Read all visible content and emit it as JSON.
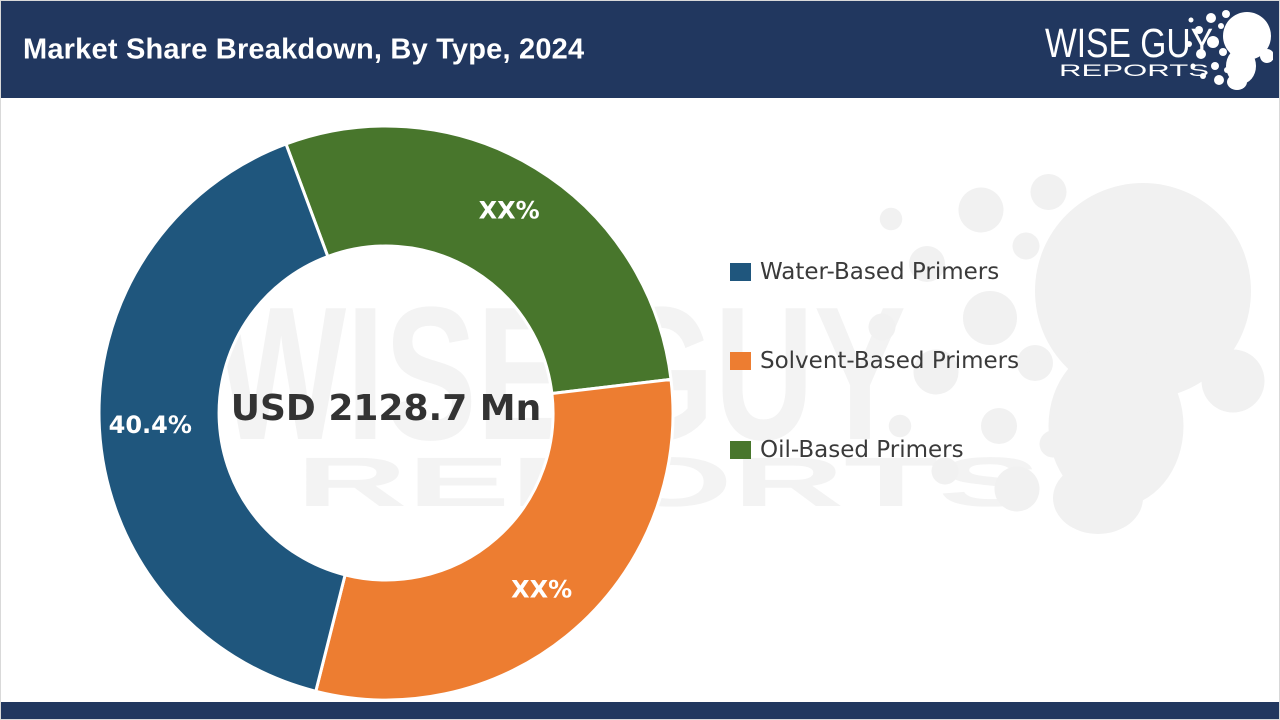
{
  "header": {
    "title": "Market Share Breakdown, By Type, 2024",
    "bg_color": "#21375F",
    "logo": {
      "name": "WISE GUY",
      "tagline": "REPORTS"
    }
  },
  "chart_data": {
    "type": "pie",
    "variant": "donut",
    "title": "Market Share Breakdown, By Type, 2024",
    "center_label": "USD 2128.7 Mn",
    "start_angle_deg": -20.4,
    "legend_position": "right",
    "categories": [
      "Oil-Based Primers",
      "Solvent-Based Primers",
      "Water-Based Primers"
    ],
    "slices": [
      {
        "category": "Oil-Based Primers",
        "display_label": "XX%",
        "share_pct_est": 28.8,
        "color": "#48762C"
      },
      {
        "category": "Solvent-Based Primers",
        "display_label": "XX%",
        "share_pct_est": 30.8,
        "color": "#ED7D31"
      },
      {
        "category": "Water-Based Primers",
        "display_label": "40.4%",
        "share_pct_est": 40.4,
        "color": "#1F567D"
      }
    ]
  },
  "legend": {
    "items": [
      {
        "label": "Water-Based Primers",
        "color": "#1F567D"
      },
      {
        "label": "Solvent-Based Primers",
        "color": "#ED7D31"
      },
      {
        "label": "Oil-Based Primers",
        "color": "#48762C"
      }
    ]
  },
  "watermark": {
    "line1": "WISE GUY",
    "line2": "REPORTS"
  },
  "colors": {
    "header_bar": "#21375F",
    "footer_bar": "#21375F",
    "slice_blue": "#1F567D",
    "slice_orange": "#ED7D31",
    "slice_green": "#48762C",
    "center_text": "#333333",
    "legend_text": "#3A3A3A",
    "watermark": "#F3F3F3"
  }
}
